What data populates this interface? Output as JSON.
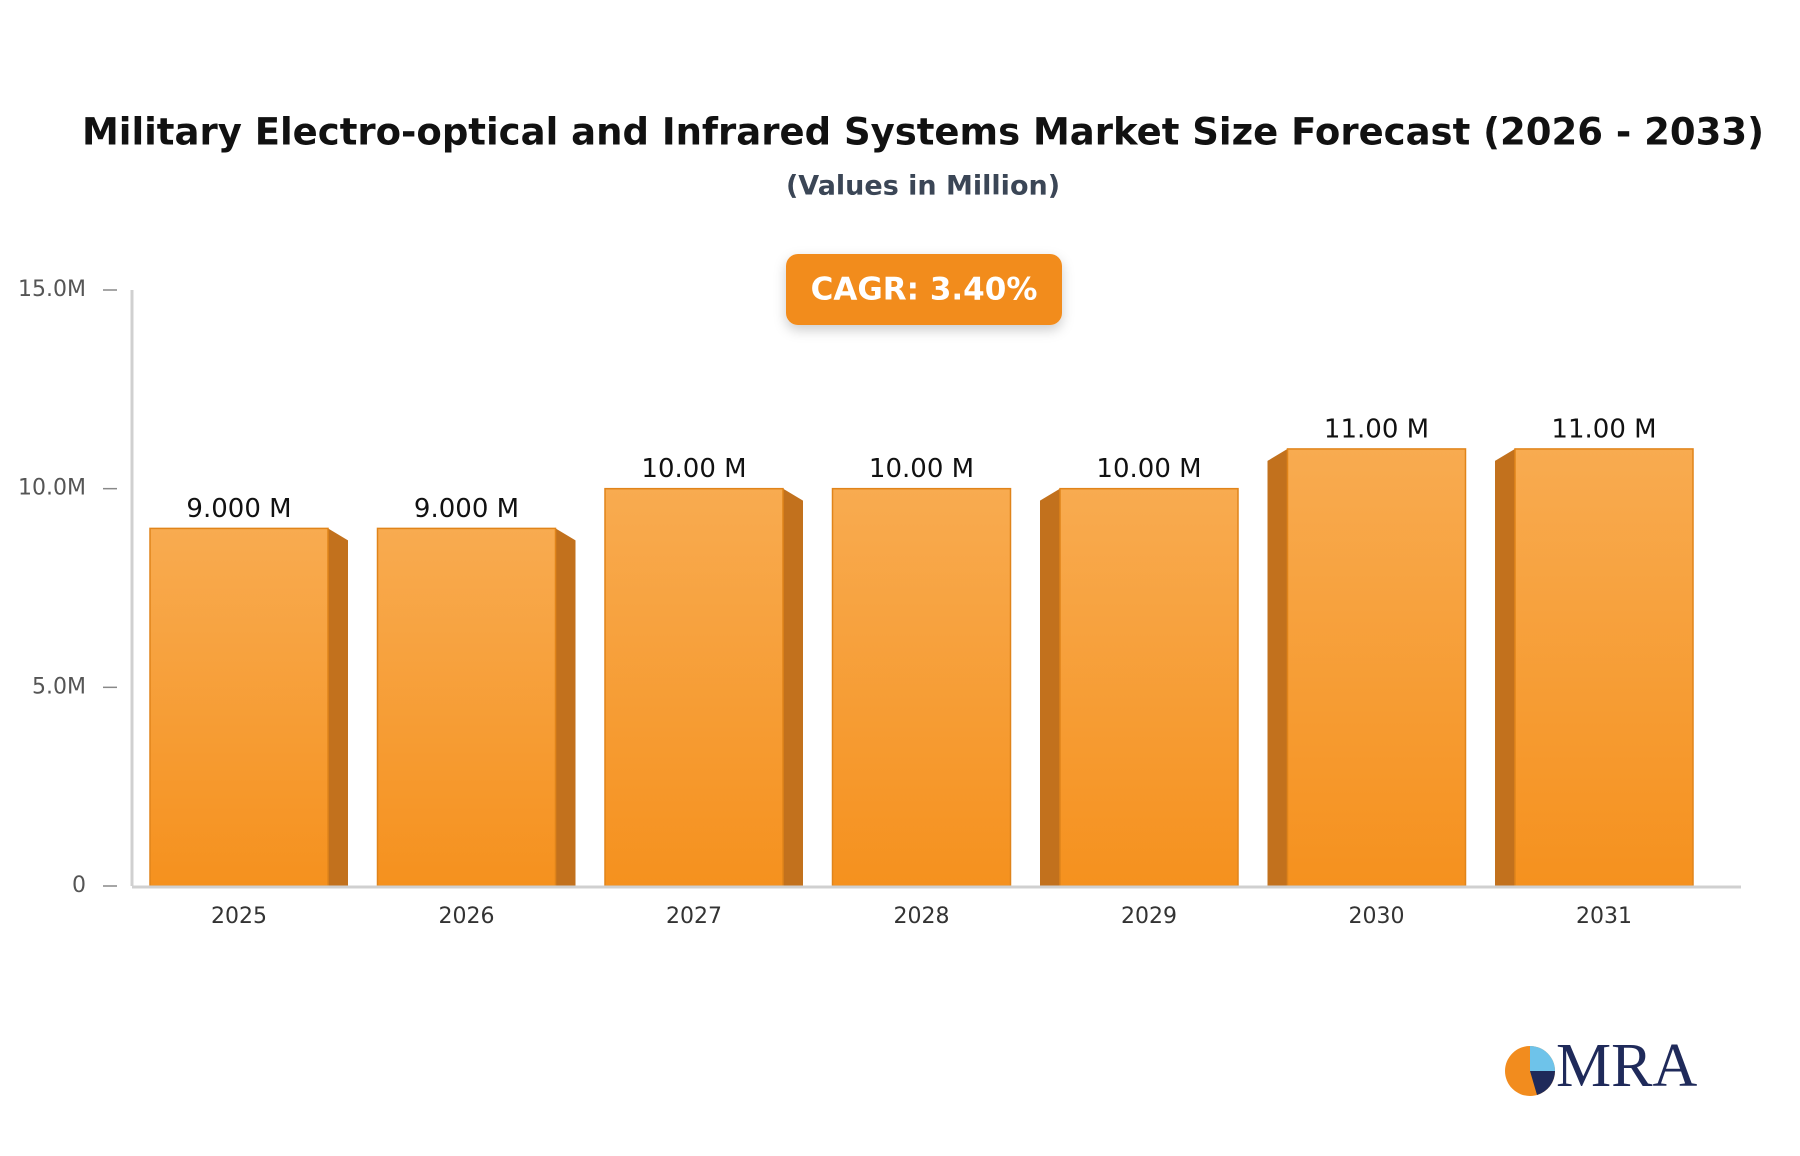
{
  "chart_data": {
    "type": "bar",
    "title": "Military Electro-optical and Infrared Systems Market Size Forecast (2026 - 2033)",
    "subtitle": "(Values in Million)",
    "annotation": "CAGR: 3.40%",
    "categories": [
      "2025",
      "2026",
      "2027",
      "2028",
      "2029",
      "2030",
      "2031"
    ],
    "values": [
      9,
      9,
      10,
      10,
      10,
      11,
      11
    ],
    "value_labels": [
      "9.000 M",
      "9.000 M",
      "10.00 M",
      "10.00 M",
      "10.00 M",
      "11.00 M",
      "11.00 M"
    ],
    "color": "#f59a2e",
    "ylim": [
      0,
      15
    ],
    "yticks": [
      0,
      {
        "value": 5,
        "label": "5.0M"
      },
      {
        "value": 10,
        "label": "10.0M"
      },
      {
        "value": 15,
        "label": "15.0M"
      }
    ],
    "grid": false
  },
  "logo": {
    "text": "MRA"
  }
}
